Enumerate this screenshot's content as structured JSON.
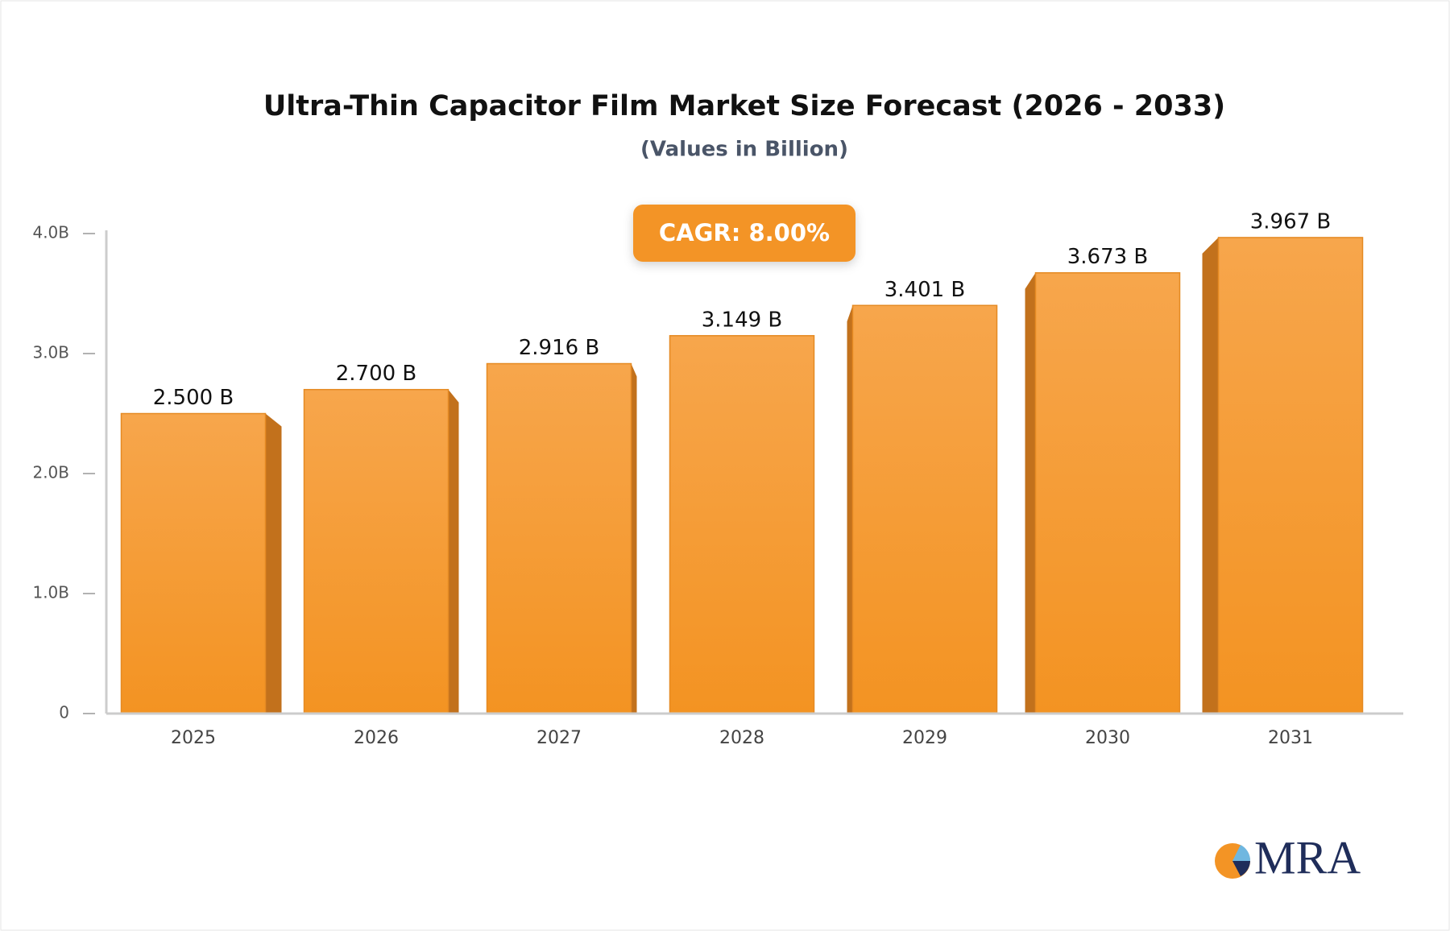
{
  "chart_data": {
    "type": "bar",
    "title": "Ultra-Thin Capacitor Film Market Size Forecast (2026 - 2033)",
    "subtitle": "(Values in Billion)",
    "annotation": "CAGR: 8.00%",
    "categories": [
      "2025",
      "2026",
      "2027",
      "2028",
      "2029",
      "2030",
      "2031"
    ],
    "values": [
      2.5,
      2.7,
      2.916,
      3.149,
      3.401,
      3.673,
      3.967
    ],
    "value_labels": [
      "2.500 B",
      "2.700 B",
      "2.916 B",
      "3.149 B",
      "3.401 B",
      "3.673 B",
      "3.967 B"
    ],
    "color": "#f59a2e",
    "ylim": [
      0,
      4
    ],
    "yticks": [
      0,
      {
        "value": 1,
        "label": "1.0B"
      },
      {
        "value": 2,
        "label": "2.0B"
      },
      {
        "value": 3,
        "label": "3.0B"
      },
      {
        "value": 4,
        "label": "4.0B"
      }
    ]
  },
  "logo": "MRA"
}
